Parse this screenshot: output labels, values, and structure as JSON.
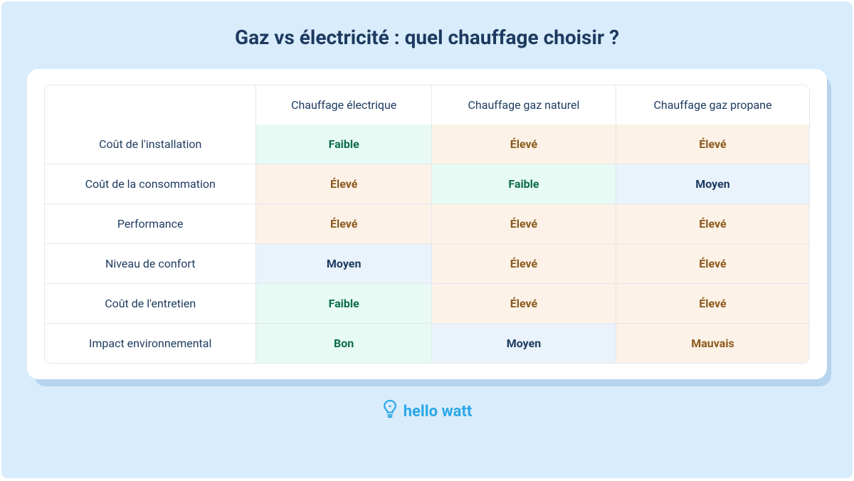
{
  "colors": {
    "page_bg": "#d9ecfb",
    "card_bg": "#ffffff",
    "card_shadow": "#b6d4ee",
    "title_color": "#1d3a5f",
    "header_text": "#1d3a5f",
    "rowlabel_text": "#1d3a5f",
    "border": "#e3e8ef",
    "brand": "#2aa8e8",
    "cell_good_bg": "#e7faf4",
    "cell_good_text": "#0d6b4f",
    "cell_neutral_bg": "#eaf2fb",
    "cell_neutral_text": "#1d3a5f",
    "cell_bad_bg": "#fdf2e7",
    "cell_bad_text": "#8a5a1e"
  },
  "title": "Gaz vs électricité : quel chauffage choisir ?",
  "brand": "hello watt",
  "table": {
    "columns": [
      "",
      "Chauffage électrique",
      "Chauffage gaz naturel",
      "Chauffage gaz propane"
    ],
    "rows": [
      {
        "label": "Coût de l'installation",
        "cells": [
          {
            "text": "Faible",
            "tone": "good"
          },
          {
            "text": "Élevé",
            "tone": "bad"
          },
          {
            "text": "Élevé",
            "tone": "bad"
          }
        ]
      },
      {
        "label": "Coût de la consommation",
        "cells": [
          {
            "text": "Élevé",
            "tone": "bad"
          },
          {
            "text": "Faible",
            "tone": "good"
          },
          {
            "text": "Moyen",
            "tone": "neutral"
          }
        ]
      },
      {
        "label": "Performance",
        "cells": [
          {
            "text": "Élevé",
            "tone": "bad"
          },
          {
            "text": "Élevé",
            "tone": "bad"
          },
          {
            "text": "Élevé",
            "tone": "bad"
          }
        ]
      },
      {
        "label": "Niveau de confort",
        "cells": [
          {
            "text": "Moyen",
            "tone": "neutral"
          },
          {
            "text": "Élevé",
            "tone": "bad"
          },
          {
            "text": "Élevé",
            "tone": "bad"
          }
        ]
      },
      {
        "label": "Coût de l'entretien",
        "cells": [
          {
            "text": "Faible",
            "tone": "good"
          },
          {
            "text": "Élevé",
            "tone": "bad"
          },
          {
            "text": "Élevé",
            "tone": "bad"
          }
        ]
      },
      {
        "label": "Impact environnemental",
        "cells": [
          {
            "text": "Bon",
            "tone": "good"
          },
          {
            "text": "Moyen",
            "tone": "neutral"
          },
          {
            "text": "Mauvais",
            "tone": "bad"
          }
        ]
      }
    ]
  }
}
